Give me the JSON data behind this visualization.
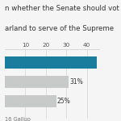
{
  "title_line1": "n whether the Senate should vot",
  "title_line2": "arland to serve of the Supreme",
  "bars": [
    {
      "label": "",
      "value": 45,
      "color": "#1a7d9e"
    },
    {
      "label": "31%",
      "value": 31,
      "color": "#c8caca"
    },
    {
      "label": "25%",
      "value": 25,
      "color": "#c8caca"
    }
  ],
  "xlim": [
    0,
    46
  ],
  "xticks": [
    10,
    20,
    30,
    40
  ],
  "footnote": "16 Gallup",
  "title_fontsize": 6.2,
  "label_fontsize": 5.2,
  "pct_fontsize": 5.5,
  "footnote_fontsize": 4.8,
  "bar_height": 0.6,
  "background_color": "#f5f5f5",
  "grid_color": "#cccccc",
  "text_color": "#333333",
  "footnote_color": "#777777"
}
